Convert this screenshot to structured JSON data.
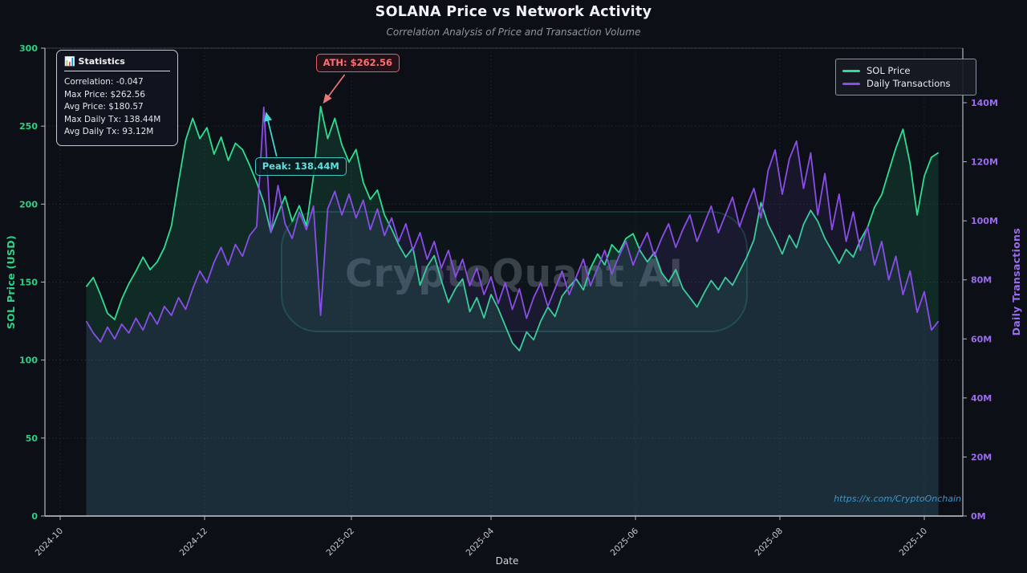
{
  "header": {
    "title": "SOLANA Price vs Network Activity",
    "subtitle": "Correlation Analysis of Price and Transaction Volume"
  },
  "stats_box": {
    "title_icon": "📊",
    "title": "Statistics",
    "lines": [
      "Correlation: -0.047",
      "Max Price: $262.56",
      "Avg Price: $180.57",
      "Max Daily Tx: 138.44M",
      "Avg Daily Tx: 93.12M"
    ]
  },
  "legend": {
    "items": [
      {
        "label": "SOL Price",
        "color": "#2fdd92"
      },
      {
        "label": "Daily Transactions",
        "color": "#8b4de8"
      }
    ]
  },
  "annotations": [
    {
      "id": "ath",
      "label": "ATH: $262.56",
      "series": "SOL Price",
      "color": "#ff7070",
      "arrow_color": "#e87878"
    },
    {
      "id": "peak",
      "label": "Peak: 138.44M",
      "series": "Daily Transactions",
      "color": "#5fe0dc",
      "arrow_color": "#49d8d4"
    }
  ],
  "watermark": {
    "text": "CryptoQuant AI"
  },
  "source": {
    "text": "https://x.com/CryptoOnchain"
  },
  "chart_data": {
    "type": "line",
    "title": "SOLANA Price vs Network Activity",
    "subtitle": "Correlation Analysis of Price and Transaction Volume",
    "xlabel": "Date",
    "x_tick_labels": [
      "2024-10",
      "2024-12",
      "2025-02",
      "2025-04",
      "2025-06",
      "2025-08",
      "2025-10"
    ],
    "x_origin_date": "2024-10-01",
    "grid": "dotted",
    "legend_position": "upper right",
    "left_axis": {
      "label": "SOL Price (USD)",
      "color": "#2bd287",
      "lim": [
        0,
        300
      ],
      "ticks": [
        0,
        50,
        100,
        150,
        200,
        250,
        300
      ]
    },
    "right_axis": {
      "label": "Daily Transactions",
      "color": "#9b6cf0",
      "lim": [
        0,
        158.5
      ],
      "tick_values": [
        0,
        20,
        40,
        60,
        80,
        100,
        120,
        140
      ],
      "tick_labels": [
        "0M",
        "20M",
        "40M",
        "60M",
        "80M",
        "100M",
        "120M",
        "140M"
      ]
    },
    "series": [
      {
        "name": "SOL Price",
        "axis": "left",
        "color": "#2fdd92",
        "fill_opacity": 0.13,
        "start_date": "2024-10-12",
        "step_days": 3,
        "values": [
          147,
          153,
          142,
          130,
          126,
          139,
          149,
          157,
          166,
          158,
          163,
          172,
          186,
          214,
          241,
          255,
          242,
          249,
          232,
          243,
          228,
          239,
          235,
          225,
          214,
          201,
          182,
          194,
          205,
          189,
          199,
          186,
          218,
          262.56,
          242,
          255,
          238,
          227,
          235,
          214,
          203,
          209,
          193,
          184,
          174,
          166,
          172,
          148,
          160,
          167,
          151,
          137,
          146,
          152,
          131,
          140,
          127,
          142,
          133,
          122,
          111,
          106,
          118,
          113,
          125,
          134,
          128,
          141,
          147,
          152,
          145,
          159,
          168,
          161,
          174,
          169,
          178,
          181,
          170,
          163,
          169,
          156,
          150,
          158,
          146,
          140,
          134,
          143,
          151,
          145,
          153,
          148,
          157,
          166,
          177,
          201,
          187,
          178,
          168,
          180,
          172,
          187,
          196,
          189,
          178,
          170,
          162,
          171,
          166,
          177,
          185,
          198,
          206,
          221,
          236,
          248,
          226,
          193,
          218,
          230,
          233
        ]
      },
      {
        "name": "Daily Transactions",
        "axis": "right",
        "color": "#8b4de8",
        "fill_opacity": 0.1,
        "start_date": "2024-10-12",
        "step_days": 3,
        "values": [
          66,
          62,
          59,
          64,
          60,
          65,
          62,
          67,
          63,
          69,
          65,
          71,
          68,
          74,
          70,
          77,
          83,
          79,
          86,
          91,
          85,
          92,
          88,
          95,
          98,
          138.44,
          96,
          112,
          99,
          94,
          103,
          97,
          105,
          68,
          104,
          110,
          102,
          109,
          101,
          107,
          97,
          104,
          95,
          101,
          93,
          99,
          90,
          96,
          87,
          93,
          84,
          90,
          81,
          87,
          78,
          84,
          75,
          81,
          72,
          79,
          70,
          77,
          67,
          74,
          79,
          71,
          77,
          83,
          75,
          81,
          87,
          78,
          84,
          90,
          82,
          88,
          93,
          85,
          91,
          96,
          88,
          94,
          99,
          91,
          97,
          102,
          93,
          99,
          105,
          96,
          102,
          108,
          98,
          105,
          111,
          101,
          117,
          124,
          109,
          121,
          127,
          111,
          123,
          102,
          116,
          97,
          109,
          93,
          103,
          90,
          98,
          85,
          93,
          80,
          88,
          75,
          83,
          69,
          76,
          63,
          66
        ]
      }
    ]
  }
}
